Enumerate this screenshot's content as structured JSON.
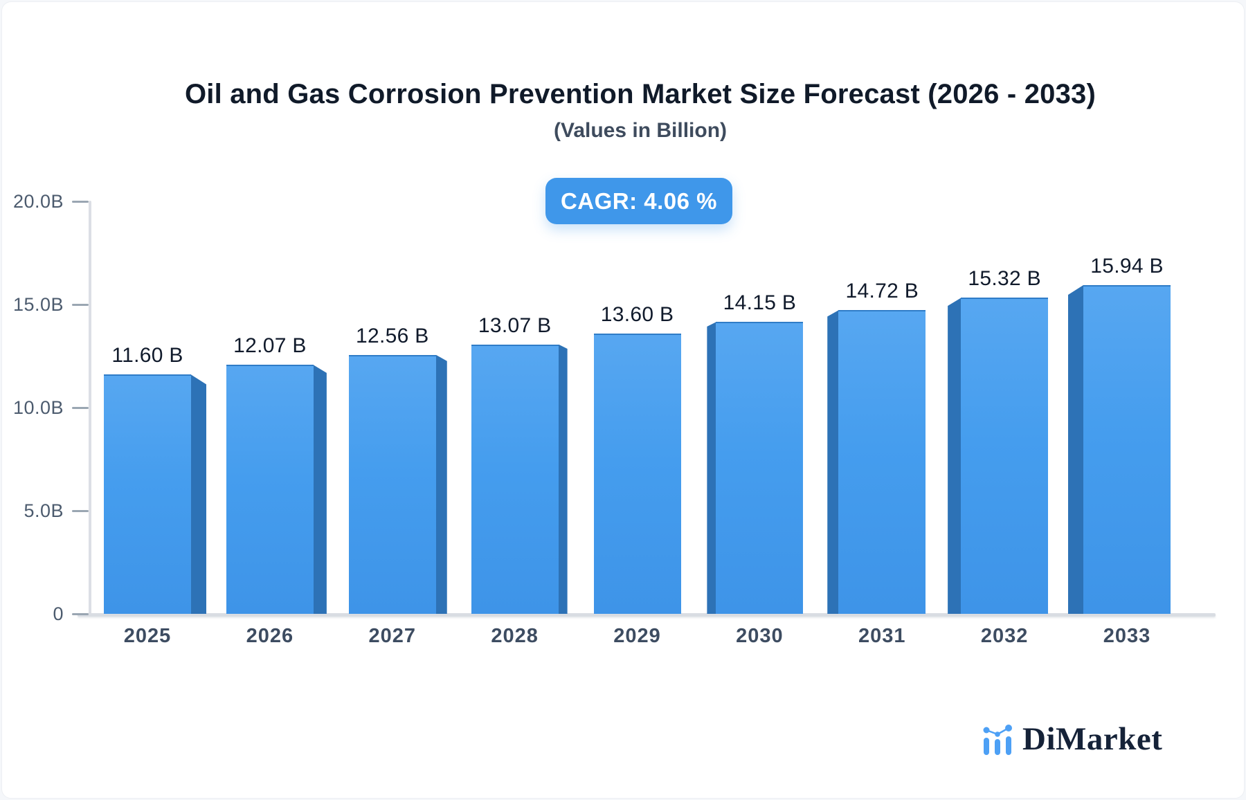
{
  "header": {
    "title": "Oil and Gas Corrosion Prevention Market Size Forecast (2026 - 2033)",
    "subtitle": "(Values in Billion)"
  },
  "badge": {
    "label": "CAGR: 4.06 %"
  },
  "chart_data": {
    "type": "bar",
    "title": "Oil and Gas Corrosion Prevention Market Size Forecast (2026 - 2033)",
    "subtitle": "(Values in Billion)",
    "categories": [
      "2025",
      "2026",
      "2027",
      "2028",
      "2029",
      "2030",
      "2031",
      "2032",
      "2033"
    ],
    "values": [
      11.6,
      12.07,
      12.56,
      13.07,
      13.6,
      14.15,
      14.72,
      15.32,
      15.94
    ],
    "value_labels": [
      "11.60 B",
      "12.07 B",
      "12.56 B",
      "13.07 B",
      "13.60 B",
      "14.15 B",
      "14.72 B",
      "15.32 B",
      "15.94 B"
    ],
    "cagr": "4.06 %",
    "xlabel": "",
    "ylabel": "",
    "ylim": [
      0,
      20
    ],
    "y_ticks": {
      "values": [
        20,
        15,
        10,
        5,
        0
      ],
      "labels": [
        "20.0B",
        "15.0B",
        "10.0B",
        "5.0B",
        "0"
      ]
    },
    "grid": false,
    "legend": null,
    "style": "3d-perspective-bars",
    "colors": {
      "bar_face_top": "#57a7f1",
      "bar_face_bottom": "#3e94e8",
      "bar_side": "#2d72b6",
      "badge_bg": "#3f97ea",
      "axis_line": "#d9dde3",
      "tick_text": "#4c5b6e",
      "category_text": "#3d4c61",
      "value_text": "#101a2b",
      "title_text": "#101a29"
    }
  },
  "logo": {
    "text": "DiMarket",
    "icon": "bar-chart-trend-icon",
    "icon_color": "#4da0f5"
  }
}
